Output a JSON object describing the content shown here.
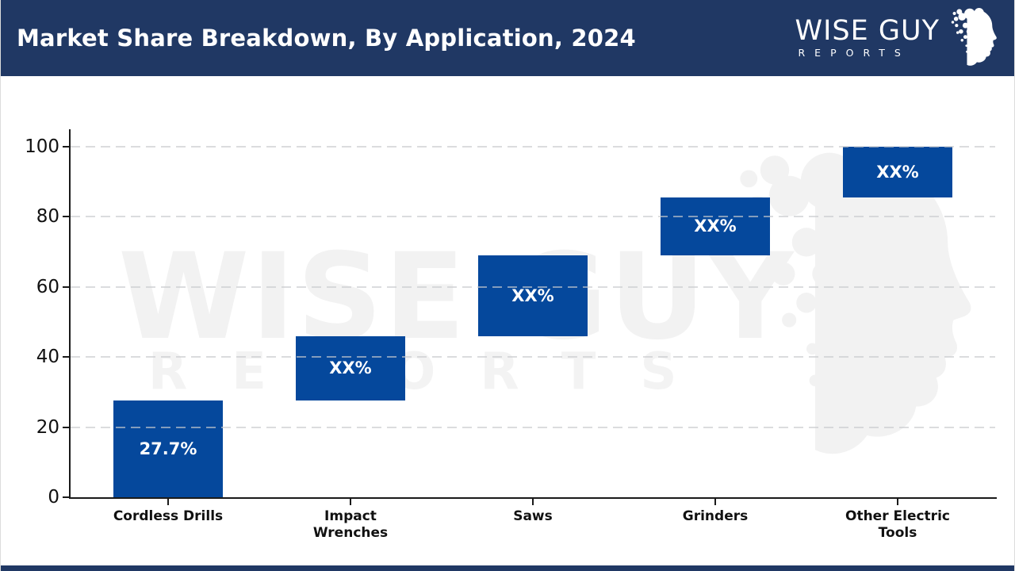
{
  "header": {
    "title": "Market Share Breakdown, By Application, 2024",
    "logo": {
      "line1": "WISE GUY",
      "line2": "REPORTS"
    }
  },
  "watermark": {
    "line1": "WISE GUY",
    "line2": "REPORTS"
  },
  "chart_data": {
    "type": "bar",
    "subtype": "waterfall",
    "title": "Market Share Breakdown, By Application, 2024",
    "categories": [
      "Cordless Drills",
      "Impact Wrenches",
      "Saws",
      "Grinders",
      "Other Electric Tools"
    ],
    "segments": [
      {
        "category": "Cordless Drills",
        "label": "27.7%",
        "start": 0,
        "end": 27.7
      },
      {
        "category": "Impact Wrenches",
        "label": "XX%",
        "start": 27.7,
        "end": 46.0
      },
      {
        "category": "Saws",
        "label": "XX%",
        "start": 46.0,
        "end": 69.1
      },
      {
        "category": "Grinders",
        "label": "XX%",
        "start": 69.1,
        "end": 85.5
      },
      {
        "category": "Other Electric Tools",
        "label": "XX%",
        "start": 85.5,
        "end": 100.0
      }
    ],
    "values": [
      27.7,
      18.3,
      23.1,
      16.4,
      14.5
    ],
    "yticks": [
      0,
      20,
      40,
      60,
      80,
      100
    ],
    "ylim": [
      0,
      100
    ],
    "xlabel": "",
    "ylabel": "",
    "grid": "horizontal-dashed",
    "legend": "none",
    "bar_color": "#05489c",
    "bar_label_color": "#ffffff",
    "header_color": "#203864",
    "gridline_color": "#dedede",
    "axis_color": "#1a1a1a"
  }
}
